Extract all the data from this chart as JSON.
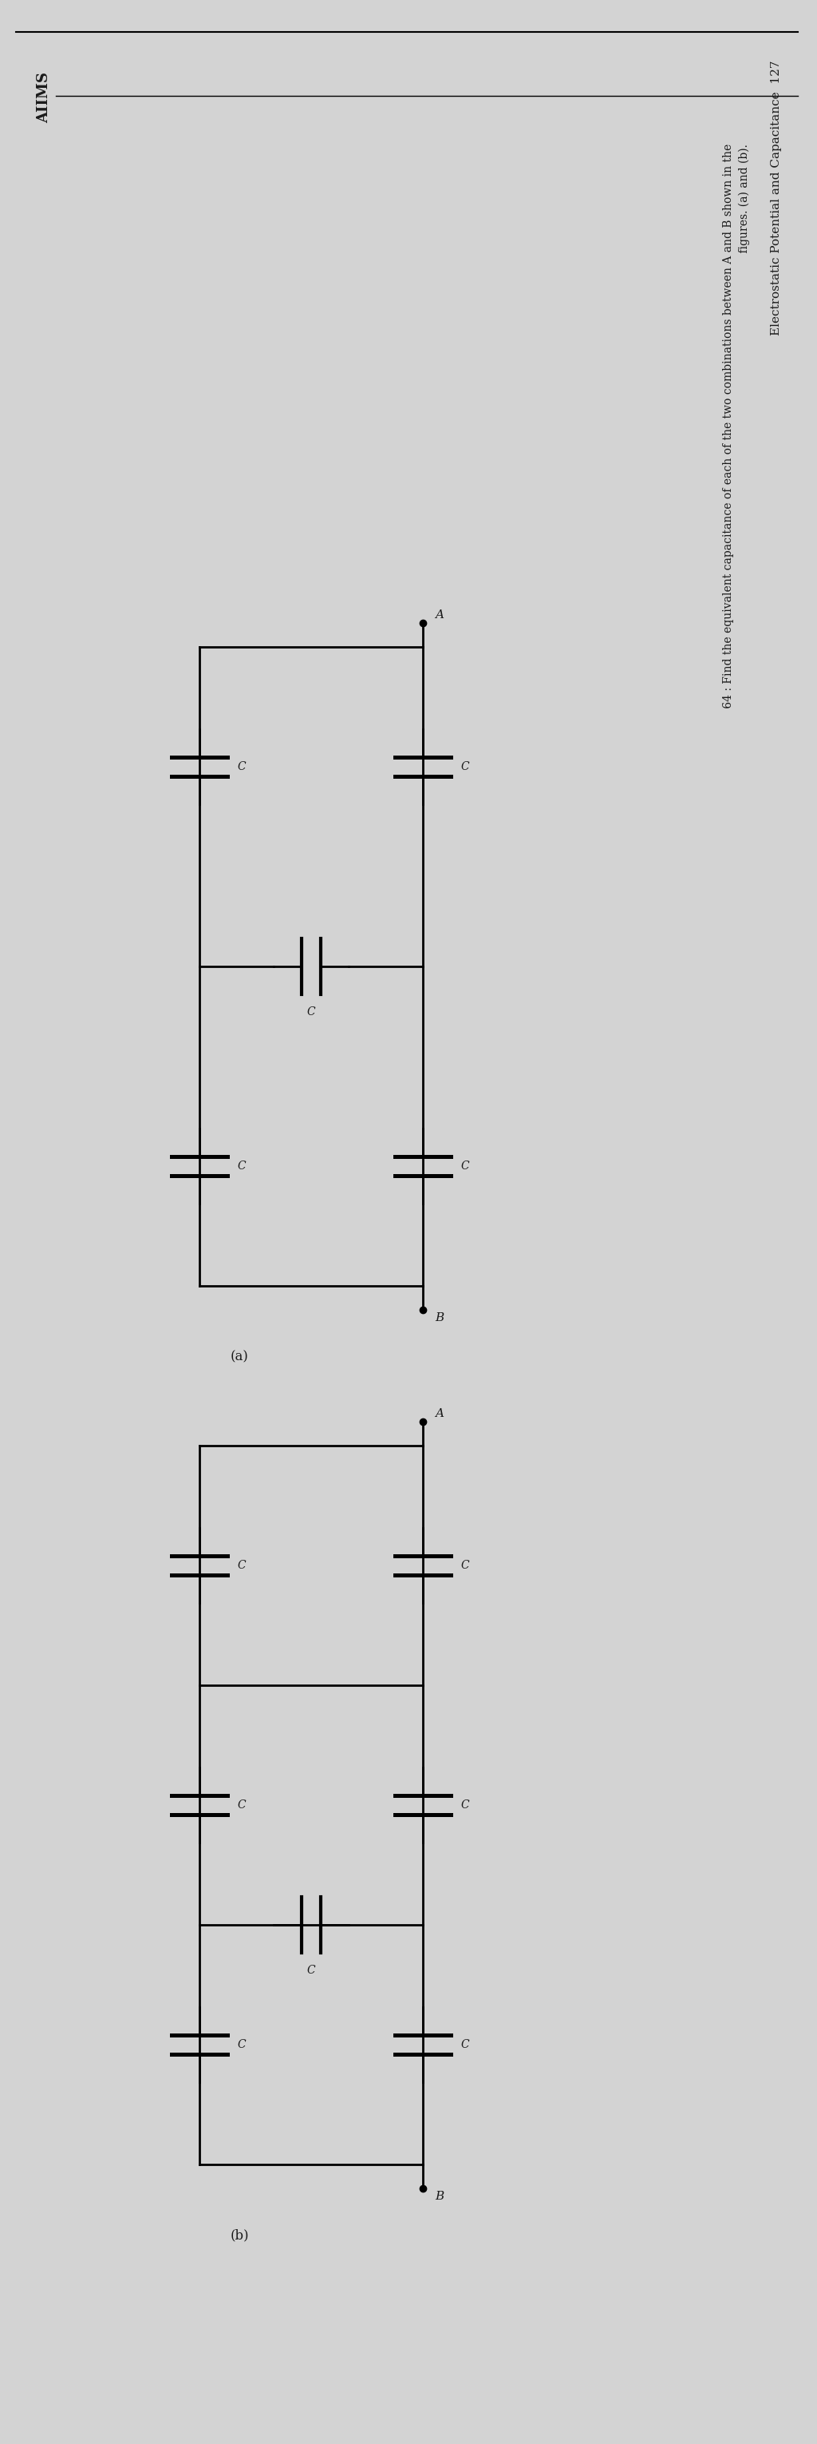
{
  "background_color": "#d3d3d3",
  "header_text": "AIIMS",
  "header_right": "Electrostatic Potential and Capacitance  127",
  "problem_text": " 64 : Find the equivalent capacitance of each of the two combinations between A and B shown in the\n figures. (a) and (b).",
  "label_a": "A",
  "label_b": "B",
  "label_c": "C",
  "label_a2": "A",
  "label_b2": "B",
  "fig_a_label": "(a)",
  "fig_b_label": "(b)"
}
